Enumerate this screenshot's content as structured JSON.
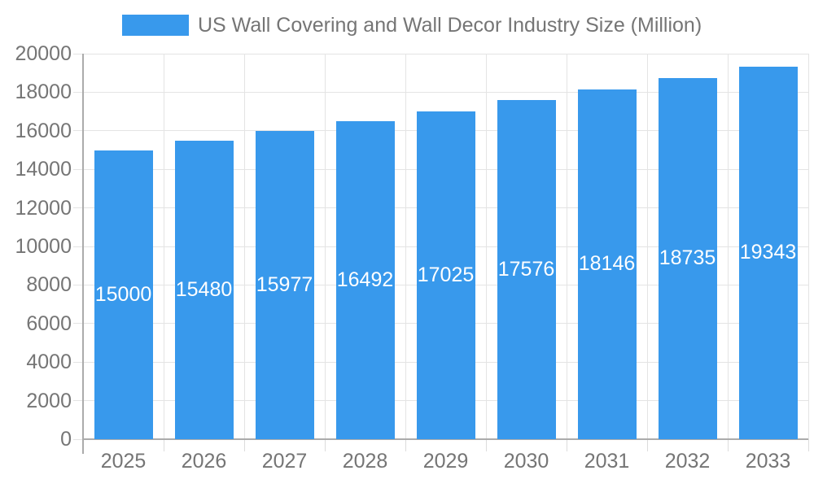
{
  "chart_data": {
    "type": "bar",
    "title": "US Wall Covering and Wall Decor Industry Size (Million)",
    "categories": [
      "2025",
      "2026",
      "2027",
      "2028",
      "2029",
      "2030",
      "2031",
      "2032",
      "2033"
    ],
    "values": [
      15000,
      15480,
      15977,
      16492,
      17025,
      17576,
      18146,
      18735,
      19343
    ],
    "xlabel": "",
    "ylabel": "",
    "ylim": [
      0,
      20000
    ],
    "yticks": [
      0,
      2000,
      4000,
      6000,
      8000,
      10000,
      12000,
      14000,
      16000,
      18000,
      20000
    ],
    "grid": true,
    "legend_position": "top",
    "bar_value_labels_shown": true
  },
  "colors": {
    "bar": "#3899EC",
    "bar_value_text": "#FFFFFF",
    "axis_text": "#757575",
    "gridline": "#E4E4E4",
    "axis_line": "#ABABAB",
    "tick": "#DCDCDC",
    "background": "#FFFFFF"
  }
}
